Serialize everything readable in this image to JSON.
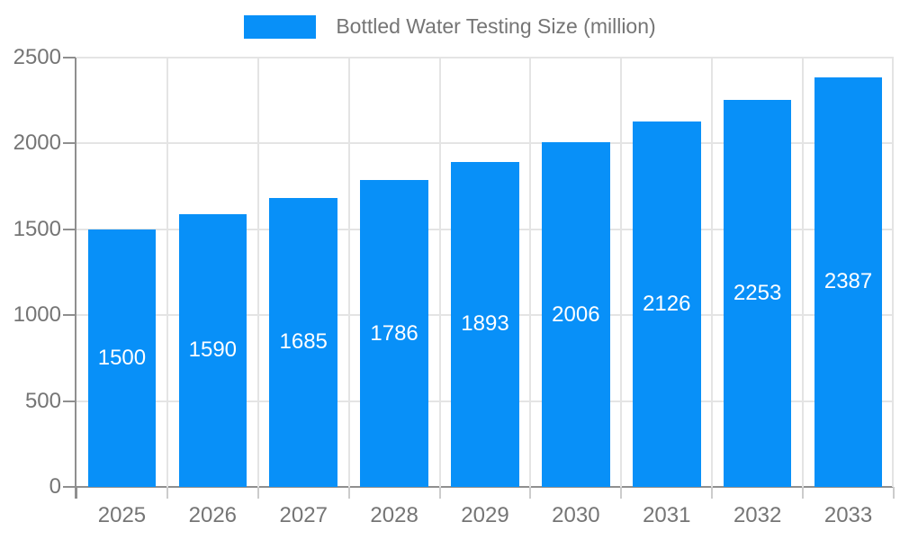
{
  "chart_data": {
    "type": "bar",
    "title": "",
    "legend": "Bottled Water Testing Size (million)",
    "legend_position": "top-center",
    "categories": [
      "2025",
      "2026",
      "2027",
      "2028",
      "2029",
      "2030",
      "2031",
      "2032",
      "2033"
    ],
    "values": [
      1500,
      1590,
      1685,
      1786,
      1893,
      2006,
      2126,
      2253,
      2387
    ],
    "xlabel": "",
    "ylabel": "",
    "ylim": [
      0,
      2500
    ],
    "yticks": [
      0,
      500,
      1000,
      1500,
      2000,
      2500
    ],
    "grid": "on",
    "value_labels": "inside-centered-white"
  },
  "colors": {
    "bar": "#0890F8",
    "grid": "#e4e4e4",
    "axis": "#8f8f8f",
    "tick": "#cccccc",
    "axis_text": "#757575",
    "value_label_text": "#ffffff",
    "background": "#ffffff"
  }
}
